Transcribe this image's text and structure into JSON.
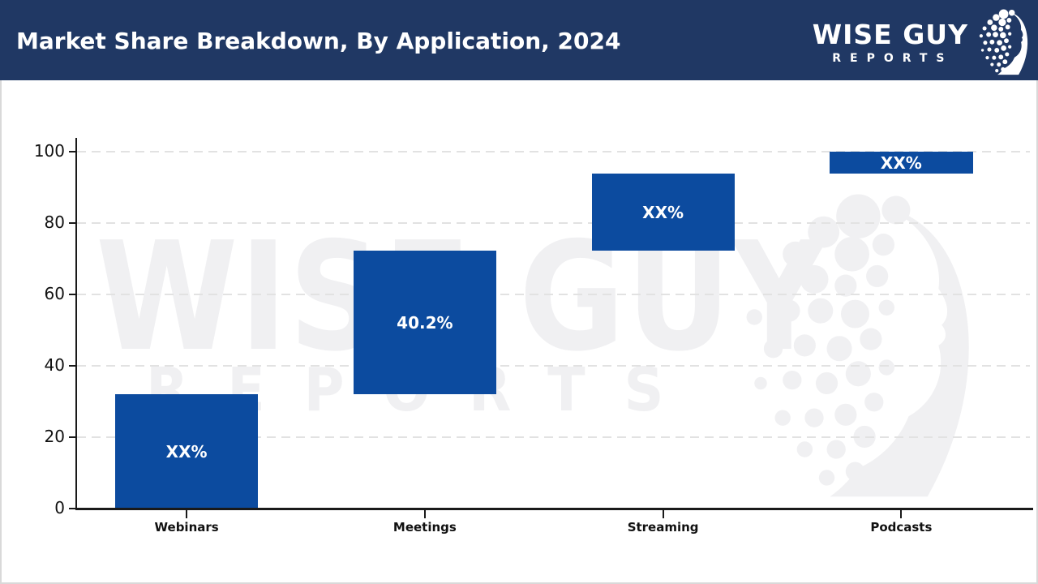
{
  "header": {
    "title": "Market Share Breakdown, By Application, 2024",
    "bg_color": "#203864",
    "logo": {
      "line1": "WISE GUY",
      "line2": "REPORTS"
    }
  },
  "watermark": {
    "line1": "WISE GUY",
    "line2": "REPORTS"
  },
  "chart_data": {
    "type": "bar",
    "subtype": "waterfall",
    "title": "Market Share Breakdown, By Application, 2024",
    "categories": [
      "Webinars",
      "Meetings",
      "Streaming",
      "Podcasts"
    ],
    "bars": [
      {
        "category": "Webinars",
        "start": 0,
        "end": 32,
        "label": "XX%"
      },
      {
        "category": "Meetings",
        "start": 32,
        "end": 72.2,
        "label": "40.2%"
      },
      {
        "category": "Streaming",
        "start": 72.2,
        "end": 93.8,
        "label": "XX%"
      },
      {
        "category": "Podcasts",
        "start": 93.8,
        "end": 100,
        "label": "XX%"
      }
    ],
    "yticks": [
      0,
      20,
      40,
      60,
      80,
      100
    ],
    "ylim": [
      0,
      105
    ],
    "xlabel": "",
    "ylabel": "",
    "grid": "horizontal-dashed",
    "legend": "none",
    "bar_color": "#0c4b9f",
    "bar_label_color": "#ffffff",
    "axis_color": "#1a1a1a"
  }
}
